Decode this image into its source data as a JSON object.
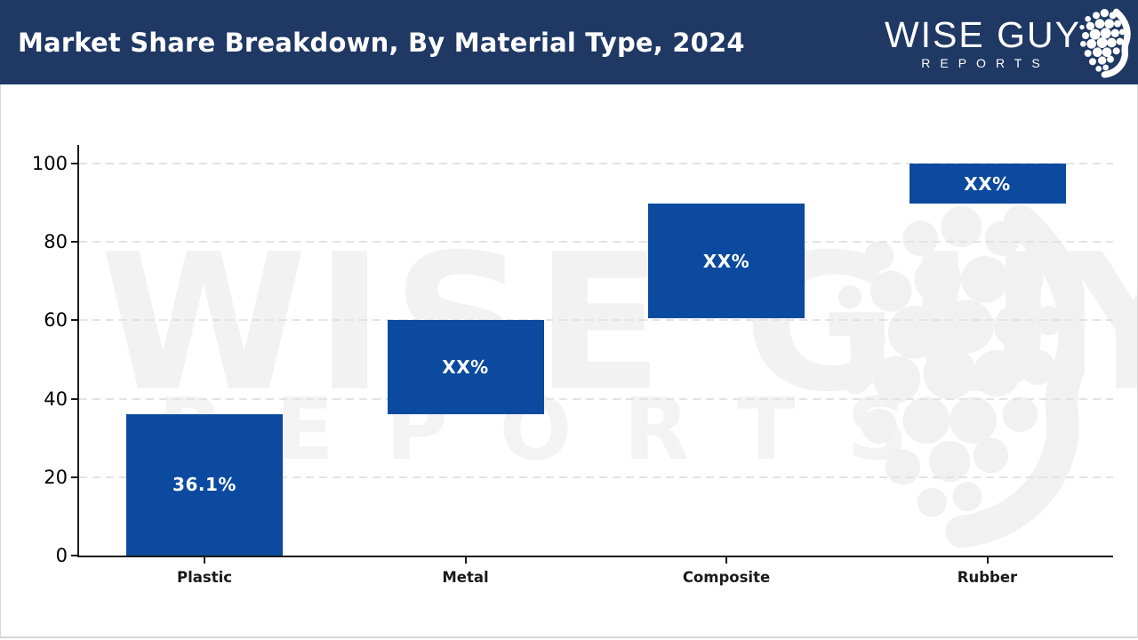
{
  "header": {
    "title": "Market Share Breakdown, By Material Type, 2024",
    "logo": {
      "brand_line1": "WISE GUY",
      "brand_line2": "REPORTS"
    }
  },
  "watermark": {
    "line1": "WISE GUY",
    "line2": "REPORTS"
  },
  "chart_data": {
    "type": "bar",
    "subtype": "floating_waterfall_segments",
    "title": "Market Share Breakdown, By Material Type, 2024",
    "categories": [
      "Plastic",
      "Metal",
      "Composite",
      "Rubber"
    ],
    "series": [
      {
        "name": "Market share (%)",
        "segments": [
          {
            "category": "Plastic",
            "start": 0,
            "end": 36.1,
            "label": "36.1%"
          },
          {
            "category": "Metal",
            "start": 36.1,
            "end": 60.0,
            "label": "XX%"
          },
          {
            "category": "Composite",
            "start": 60.5,
            "end": 89.7,
            "label": "XX%"
          },
          {
            "category": "Rubber",
            "start": 89.8,
            "end": 99.9,
            "label": "XX%"
          }
        ]
      }
    ],
    "xlabel": "",
    "ylabel": "",
    "ylim": [
      0,
      105
    ],
    "yticks": [
      0,
      20,
      40,
      60,
      80,
      100
    ],
    "grid": {
      "horizontal": true,
      "style": "dashed",
      "color": "#e3e3e3"
    },
    "legend": "none",
    "bar_color": "#0b4a9e",
    "bar_label_color": "#ffffff",
    "header_color": "#1f3864"
  }
}
